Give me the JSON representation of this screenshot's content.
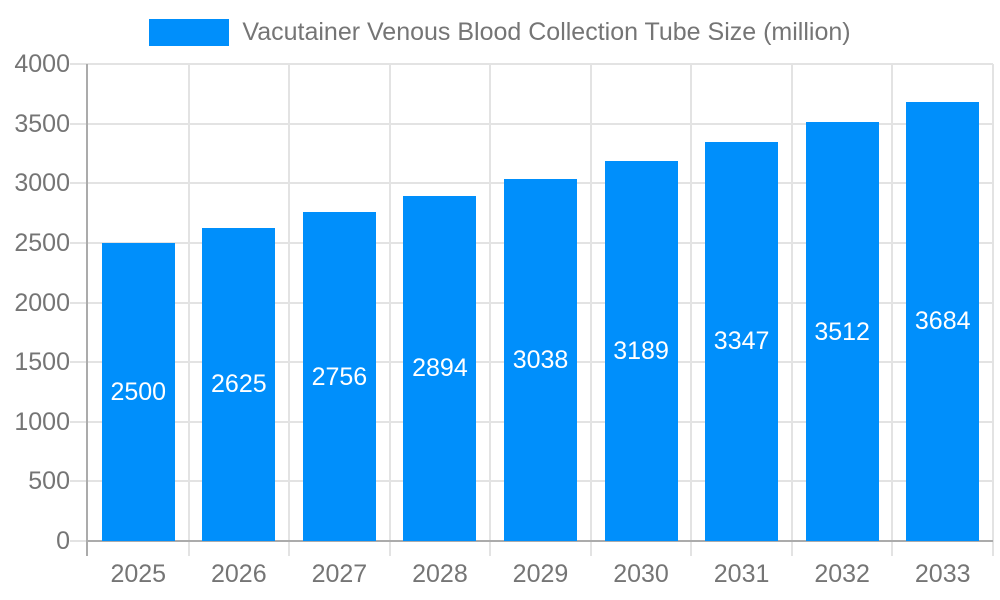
{
  "chart_data": {
    "type": "bar",
    "title": "Vacutainer Venous Blood Collection Tube Size (million)",
    "categories": [
      "2025",
      "2026",
      "2027",
      "2028",
      "2029",
      "2030",
      "2031",
      "2032",
      "2033"
    ],
    "values": [
      2500,
      2625,
      2756,
      2894,
      3038,
      3189,
      3347,
      3512,
      3684
    ],
    "xlabel": "",
    "ylabel": "",
    "ylim": [
      0,
      4000
    ],
    "ytick_step": 500,
    "yticks": [
      0,
      500,
      1000,
      1500,
      2000,
      2500,
      3000,
      3500,
      4000
    ],
    "grid": true,
    "legend_position": "top",
    "bar_label_position": "inside-center",
    "colors": {
      "bar": "#008FFB",
      "bar_label": "#FFFFFF",
      "axis_text": "#757575",
      "gridline": "#E3E3E3",
      "axis_line": "#ABABAB",
      "background": "#FFFFFF"
    }
  }
}
